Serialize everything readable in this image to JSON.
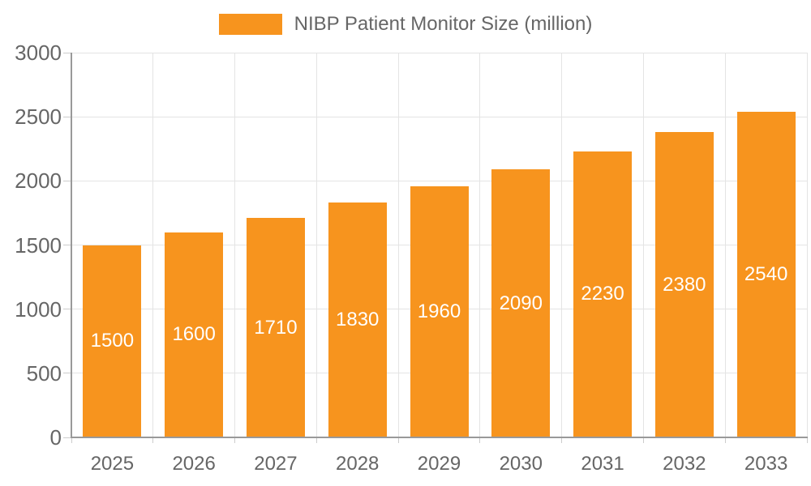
{
  "legend": {
    "label": "NIBP Patient Monitor Size (million)"
  },
  "chart_data": {
    "type": "bar",
    "title": "NIBP Patient Monitor Size (million)",
    "series_name": "NIBP Patient Monitor Size (million)",
    "categories": [
      "2025",
      "2026",
      "2027",
      "2028",
      "2029",
      "2030",
      "2031",
      "2032",
      "2033"
    ],
    "values": [
      1500,
      1600,
      1710,
      1830,
      1960,
      2090,
      2230,
      2380,
      2540
    ],
    "bar_value_labels": [
      "1500",
      "1600",
      "1710",
      "1830",
      "1960",
      "2090",
      "2230",
      "2380",
      "2540"
    ],
    "xlabel": "",
    "ylabel": "",
    "ylim": [
      0,
      3000
    ],
    "yticks": [
      0,
      500,
      1000,
      1500,
      2000,
      2500,
      3000
    ],
    "ytick_labels": [
      "0",
      "500",
      "1000",
      "1500",
      "2000",
      "2500",
      "3000"
    ],
    "grid": true,
    "legend_position": "top-center",
    "colors": {
      "bar": "#F7941E",
      "grid": "#E4E4E4",
      "axis": "#999999",
      "tick": "#CCCCCC",
      "axis_label": "#666666",
      "bar_label": "#FFFFFF",
      "background": "#FFFFFF"
    }
  }
}
